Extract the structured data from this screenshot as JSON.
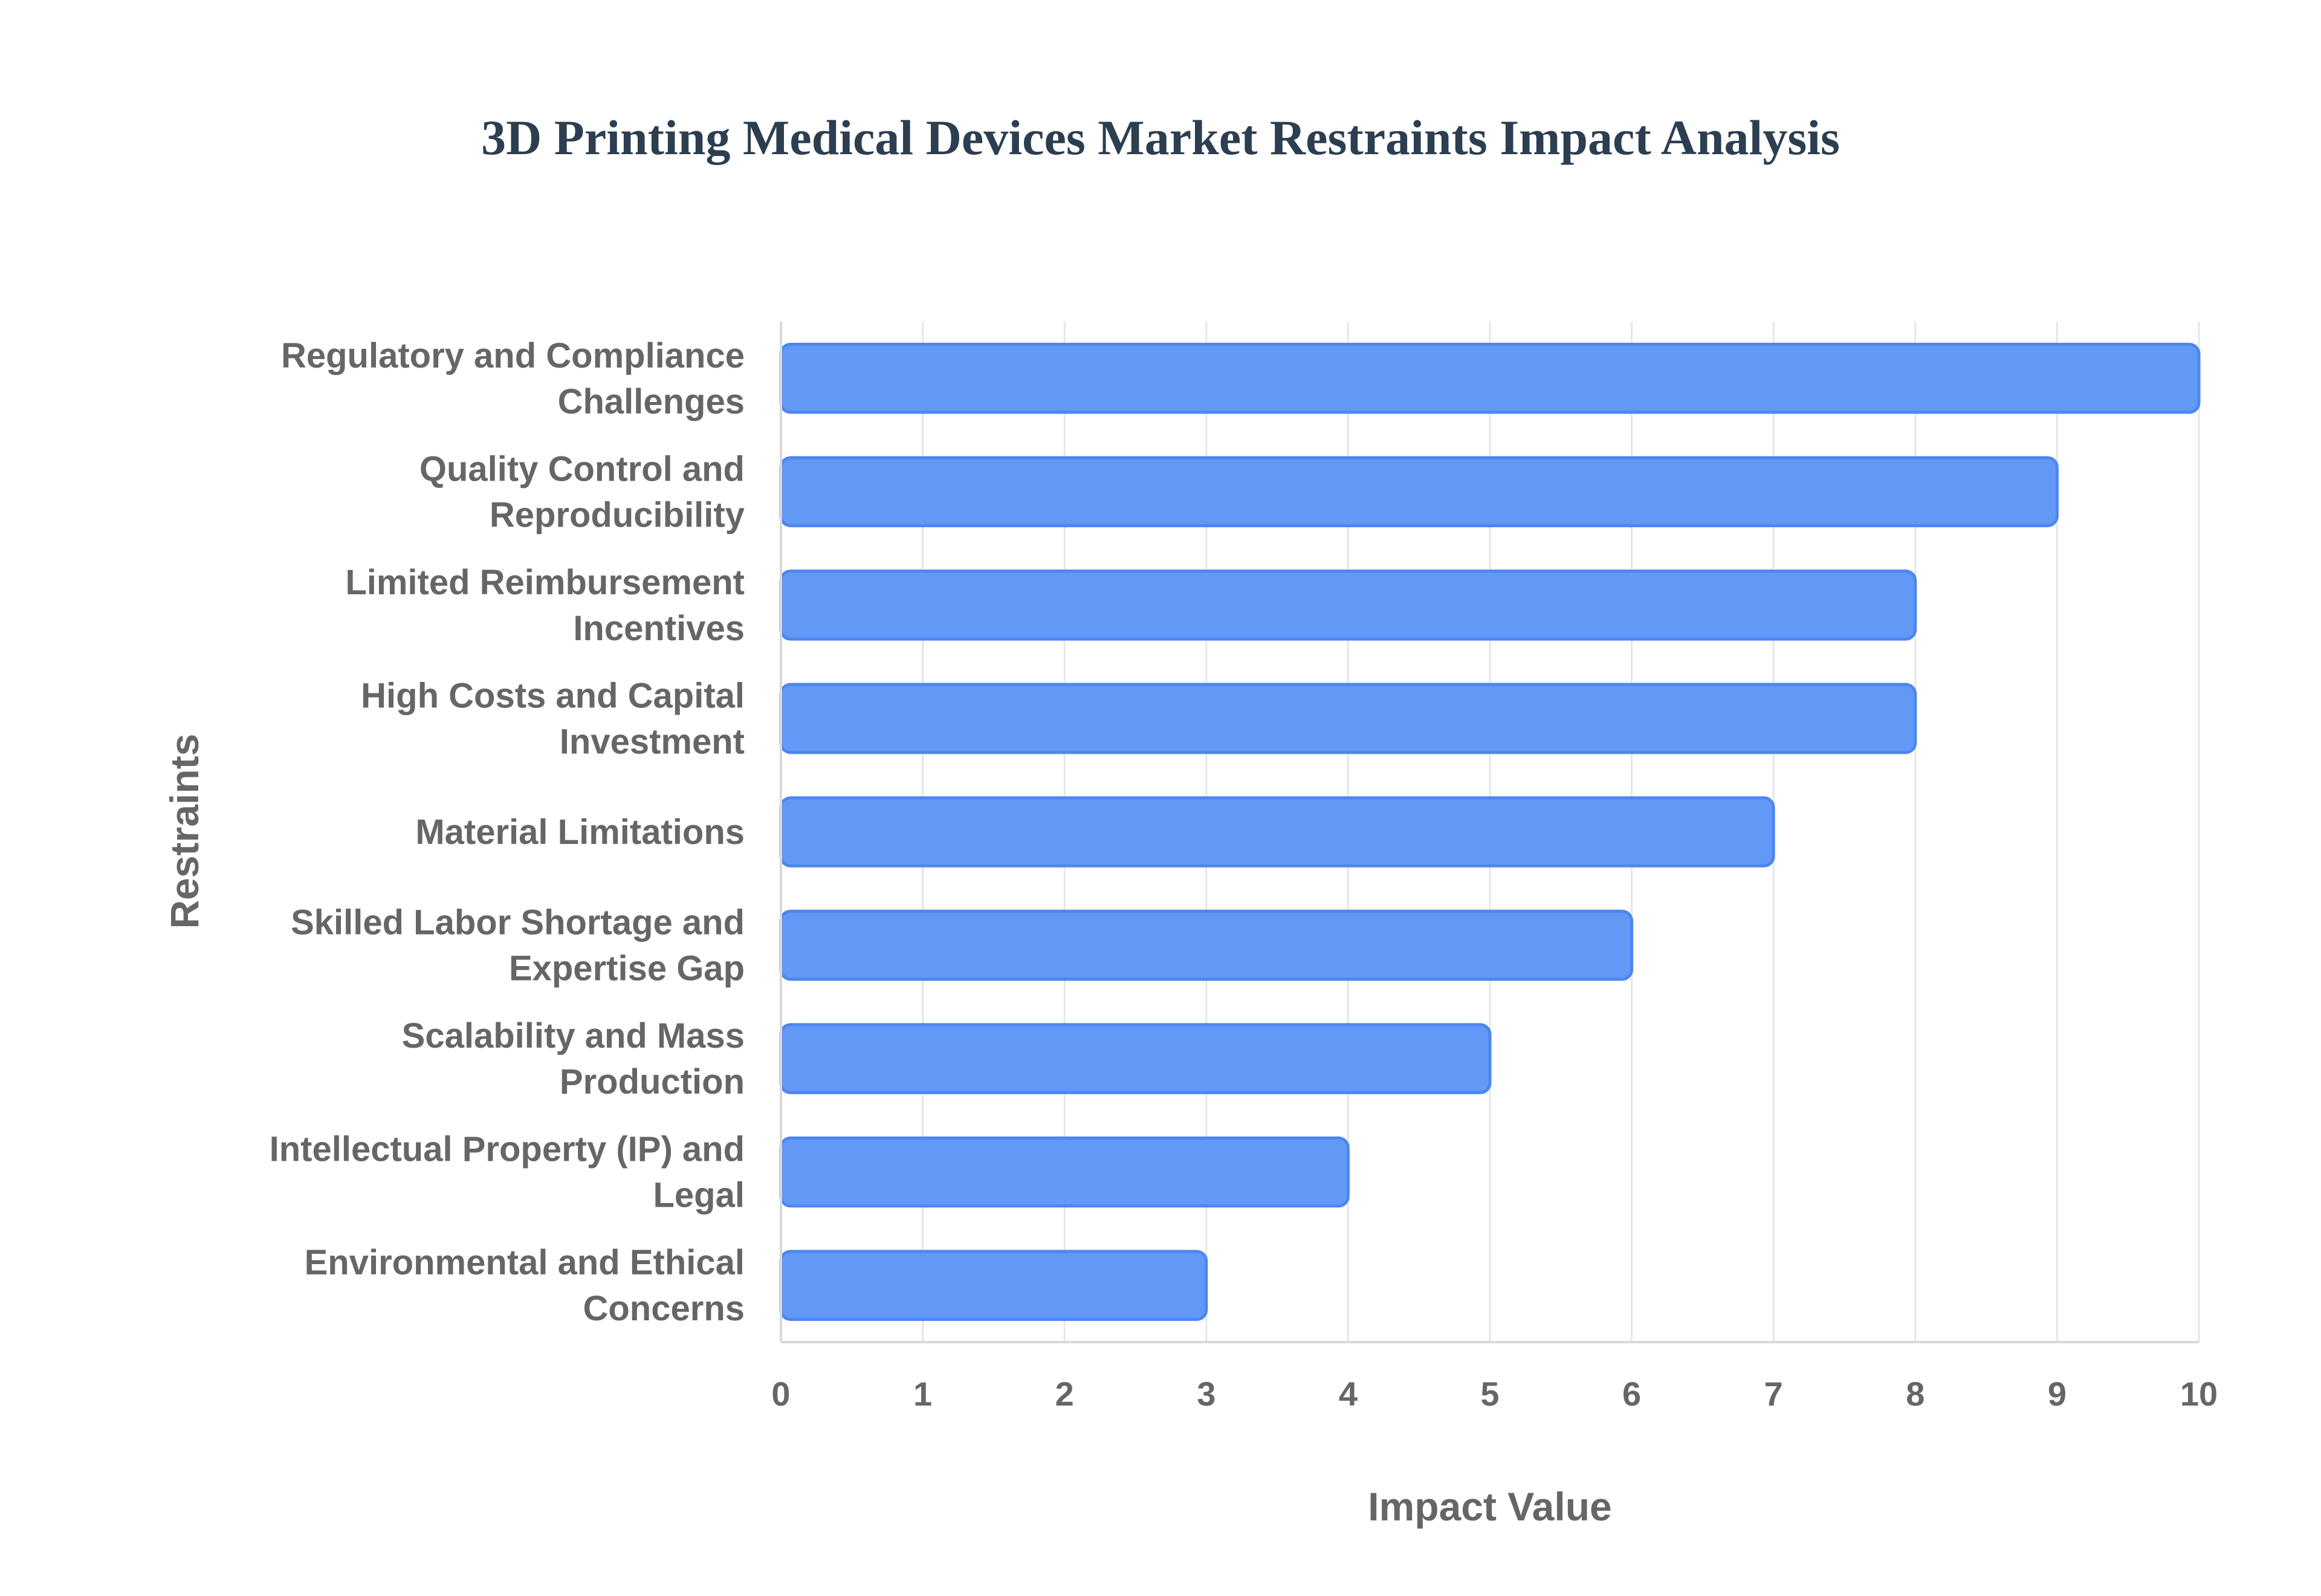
{
  "chart_data": {
    "type": "bar",
    "orientation": "horizontal",
    "title": "3D Printing Medical Devices Market Restraints Impact Analysis",
    "xlabel": "Impact Value",
    "ylabel": "Restraints",
    "categories": [
      [
        "Regulatory and Compliance",
        "Challenges"
      ],
      [
        "Quality Control and",
        "Reproducibility"
      ],
      [
        "Limited Reimbursement",
        "Incentives"
      ],
      [
        "High Costs and Capital",
        "Investment"
      ],
      [
        "Material Limitations"
      ],
      [
        "Skilled Labor Shortage and",
        "Expertise Gap"
      ],
      [
        "Scalability and Mass",
        "Production"
      ],
      [
        "Intellectual Property (IP) and",
        "Legal"
      ],
      [
        "Environmental and Ethical",
        "Concerns"
      ]
    ],
    "values": [
      10,
      9,
      8,
      8,
      7,
      6,
      5,
      4,
      3
    ],
    "xlim": [
      0,
      10
    ],
    "xticks": [
      "0",
      "1",
      "2",
      "3",
      "4",
      "5",
      "6",
      "7",
      "8",
      "9",
      "10"
    ],
    "grid": true,
    "legend": "none",
    "colors": {
      "bar_fill": "#6399f6",
      "bar_stroke": "#4d86ef",
      "title": "#2c3e50",
      "text": "#666666",
      "grid": "#e6e6e6"
    }
  }
}
